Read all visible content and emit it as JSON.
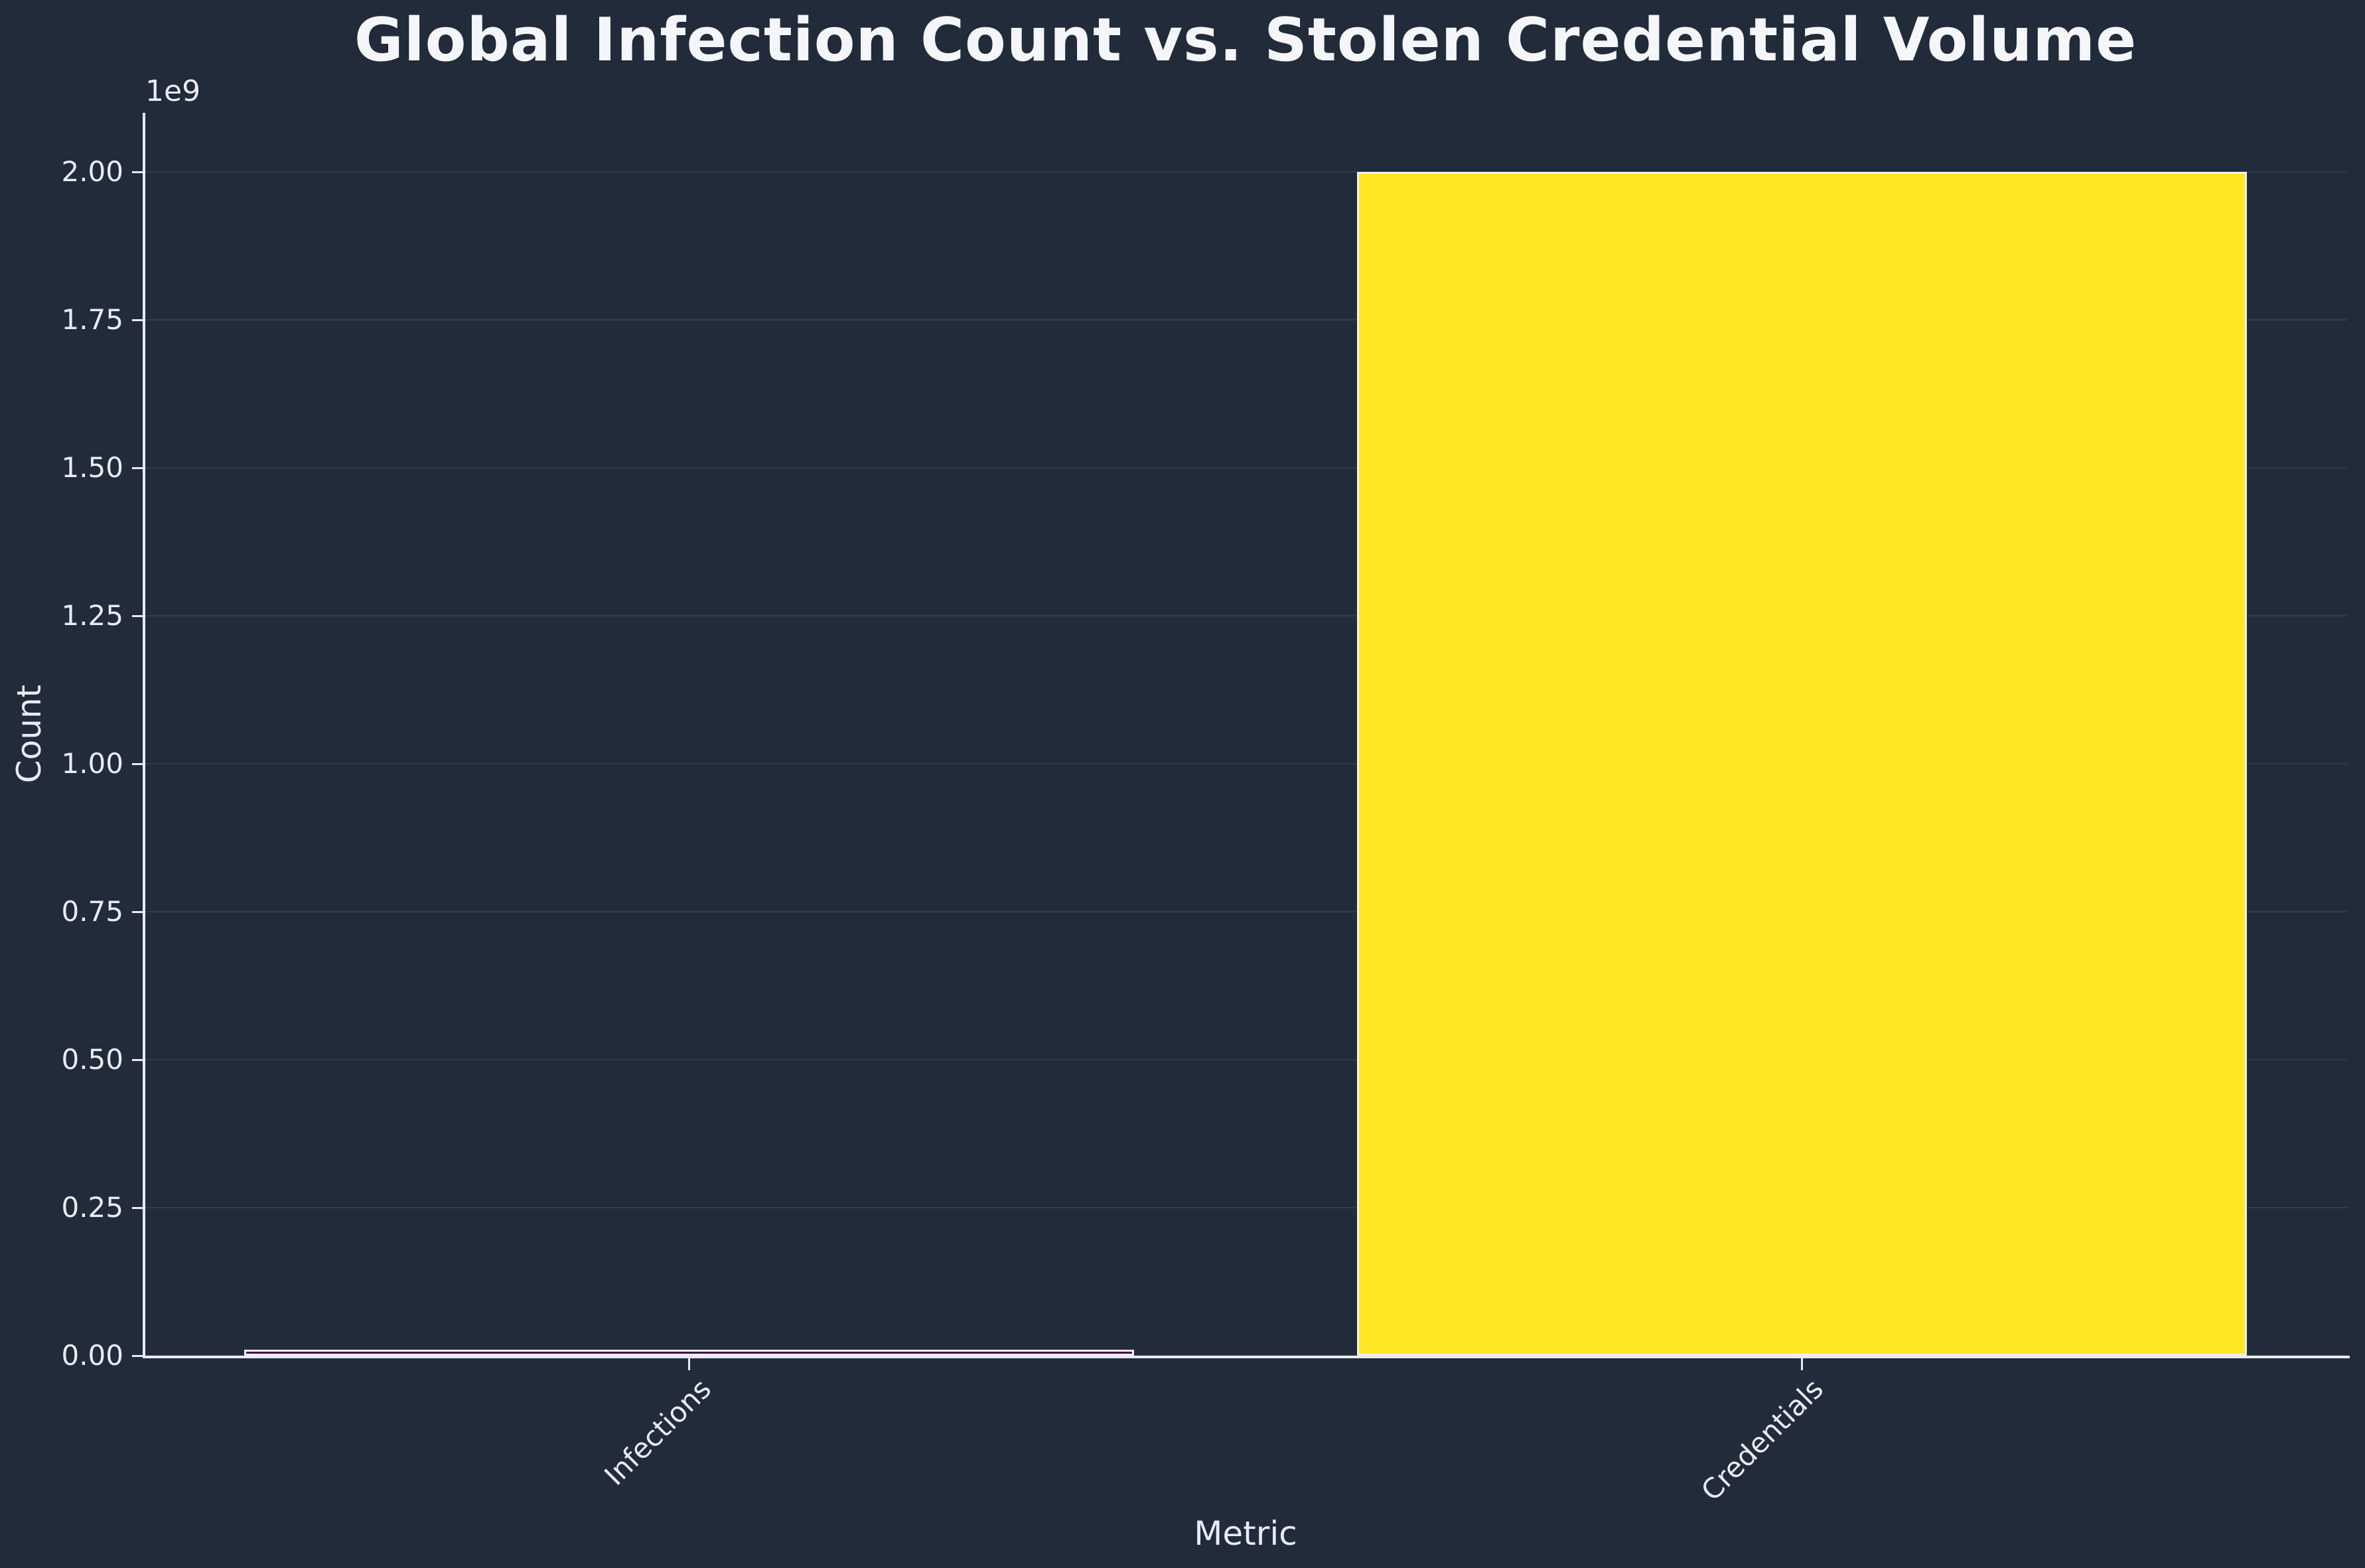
{
  "chart_data": {
    "type": "bar",
    "title": "Global Infection Count vs. Stolen Credential Volume",
    "xlabel": "Metric",
    "ylabel": "Count",
    "y_offset_label": "1e9",
    "categories": [
      "Infections",
      "Credentials"
    ],
    "values": [
      10000000,
      2000000000
    ],
    "bar_colors": [
      "#440154",
      "#fde725"
    ],
    "bar_edge_color": "#efeff6",
    "ylim": [
      0,
      2100000000
    ],
    "yticks": [
      0,
      250000000,
      500000000,
      750000000,
      1000000000,
      1250000000,
      1500000000,
      1750000000,
      2000000000
    ],
    "ytick_labels": [
      "0.00",
      "0.25",
      "0.50",
      "0.75",
      "1.00",
      "1.25",
      "1.50",
      "1.75",
      "2.00"
    ],
    "xtick_rotation_deg": 45,
    "grid": true,
    "legend": false,
    "background_color": "#212b3a",
    "text_color": "#e9ebf2",
    "title_color": "#f4f6f9"
  }
}
